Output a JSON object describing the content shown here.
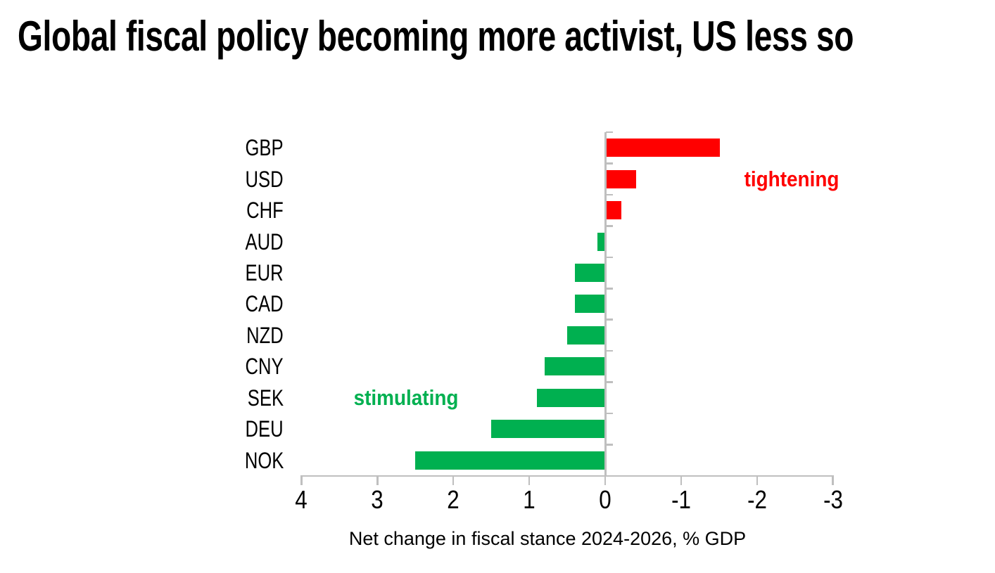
{
  "title": "Global fiscal policy becoming more activist, US less so",
  "chart_data": {
    "type": "bar",
    "orientation": "horizontal",
    "categories": [
      "GBP",
      "USD",
      "CHF",
      "AUD",
      "EUR",
      "CAD",
      "NZD",
      "CNY",
      "SEK",
      "DEU",
      "NOK"
    ],
    "values": [
      -1.5,
      -0.4,
      -0.2,
      0.1,
      0.4,
      0.4,
      0.5,
      0.8,
      0.9,
      1.5,
      2.5
    ],
    "xlabel": "Net change in fiscal stance 2024-2026, % GDP",
    "xticks": [
      4,
      3,
      2,
      1,
      0,
      -1,
      -2,
      -3
    ],
    "xlim": [
      4,
      -3
    ],
    "axis_reversed": true,
    "grid": false,
    "legend": "none",
    "colors": {
      "positive": "#00B050",
      "negative": "#FF0000",
      "axis": "#BFBFBF",
      "text": "#000000"
    },
    "annotations": [
      {
        "text": "tightening",
        "color": "#FF0000",
        "row": "USD",
        "side": "right"
      },
      {
        "text": "stimulating",
        "color": "#00B050",
        "row": "SEK",
        "side": "left"
      }
    ]
  }
}
